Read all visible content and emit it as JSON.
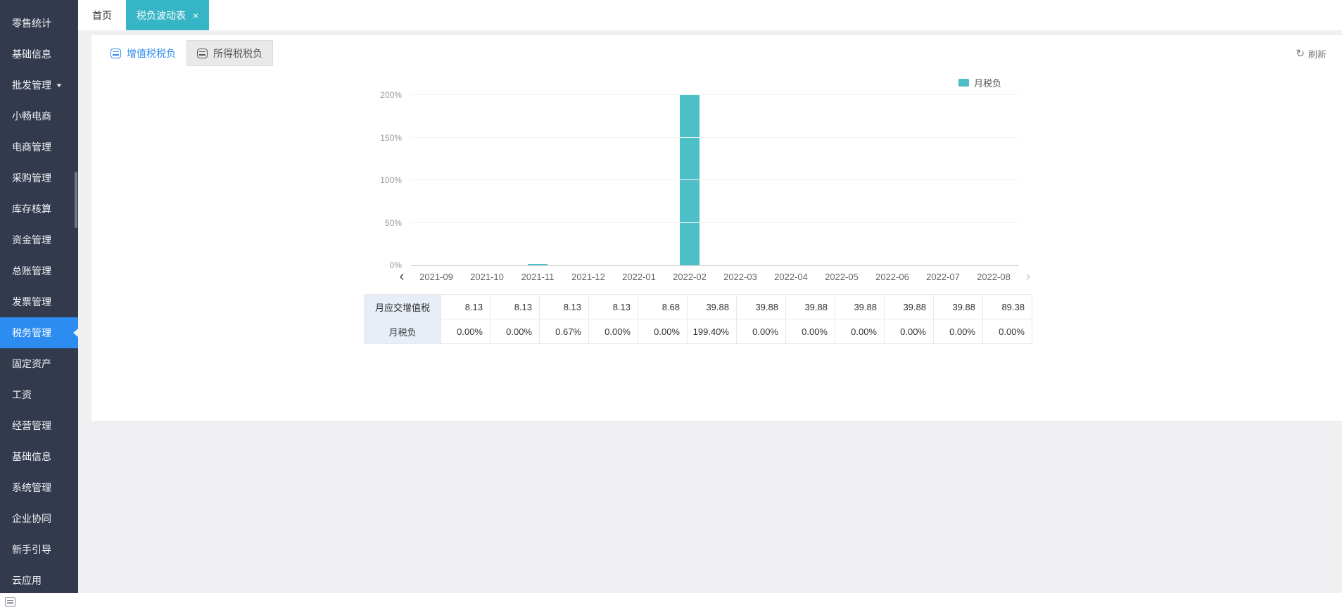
{
  "window": {
    "close": "×"
  },
  "tabbar": {
    "home": "首页",
    "active": "税负波动表",
    "close": "×"
  },
  "sidebar": {
    "items": [
      {
        "label": "零售统计"
      },
      {
        "label": "基础信息"
      },
      {
        "label": "批发管理",
        "has_dropdown": true
      },
      {
        "label": "小畅电商"
      },
      {
        "label": "电商管理"
      },
      {
        "label": "采购管理"
      },
      {
        "label": "库存核算"
      },
      {
        "label": "资金管理"
      },
      {
        "label": "总账管理"
      },
      {
        "label": "发票管理"
      },
      {
        "label": "税务管理",
        "active": true
      },
      {
        "label": "固定资产"
      },
      {
        "label": "工资"
      },
      {
        "label": "经营管理"
      },
      {
        "label": "基础信息"
      },
      {
        "label": "系统管理"
      },
      {
        "label": "企业协同"
      },
      {
        "label": "新手引导"
      },
      {
        "label": "云应用"
      }
    ]
  },
  "panel": {
    "tabs": [
      {
        "label": "增值税税负",
        "active": true
      },
      {
        "label": "所得税税负",
        "active": false
      }
    ],
    "refresh": "刷新"
  },
  "chart_data": {
    "type": "bar",
    "title": "",
    "legend_label": "月税负",
    "legend_position": "top-right",
    "categories": [
      "2021-09",
      "2021-10",
      "2021-11",
      "2021-12",
      "2022-01",
      "2022-02",
      "2022-03",
      "2022-04",
      "2022-05",
      "2022-06",
      "2022-07",
      "2022-08"
    ],
    "series": [
      {
        "name": "月税负",
        "unit": "%",
        "values": [
          0.0,
          0.0,
          0.67,
          0.0,
          0.0,
          199.4,
          0.0,
          0.0,
          0.0,
          0.0,
          0.0,
          0.0
        ]
      }
    ],
    "ylim": [
      0,
      200
    ],
    "yticks": [
      "0%",
      "50%",
      "100%",
      "150%",
      "200%"
    ],
    "grid": "faint-horizontal",
    "bar_color": "#4DBFC7"
  },
  "table": {
    "rows": [
      {
        "header": "月应交增值税",
        "values": [
          "8.13",
          "8.13",
          "8.13",
          "8.13",
          "8.68",
          "39.88",
          "39.88",
          "39.88",
          "39.88",
          "39.88",
          "39.88",
          "89.38"
        ]
      },
      {
        "header": "月税负",
        "values": [
          "0.00%",
          "0.00%",
          "0.67%",
          "0.00%",
          "0.00%",
          "199.40%",
          "0.00%",
          "0.00%",
          "0.00%",
          "0.00%",
          "0.00%",
          "0.00%"
        ]
      }
    ]
  },
  "pager": {
    "prev": "‹",
    "next": "›"
  },
  "colors": {
    "sidebar_bg": "#333A4E",
    "sidebar_active": "#2D8CF0",
    "tab_active_bg": "#35B5C5",
    "link_blue": "#2D8CF0",
    "bar": "#4DBFC7",
    "table_header_bg": "#E7EEF8",
    "content_bg": "#F0F0F2"
  }
}
